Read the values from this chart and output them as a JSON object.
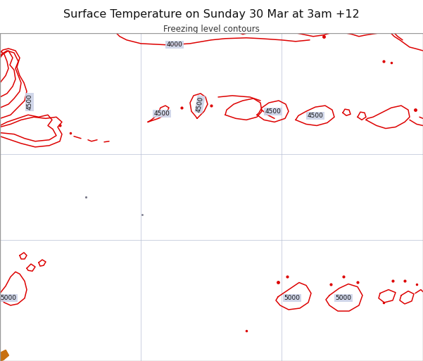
{
  "title": "Surface Temperature on Sunday 30 Mar at 3am +12",
  "subtitle": "Freezing level contours",
  "map_bg": "#ccd3e8",
  "title_bg": "#ffffff",
  "contour_color": "#dd0000",
  "lw": 1.1,
  "label_fs": 6.5,
  "title_fs": 11.5,
  "subtitle_fs": 8.5,
  "grid_color": "#b8bfd4",
  "grid_lw": 0.5,
  "figsize": [
    6.01,
    5.13
  ],
  "dpi": 100,
  "orange_color": "#c87010"
}
